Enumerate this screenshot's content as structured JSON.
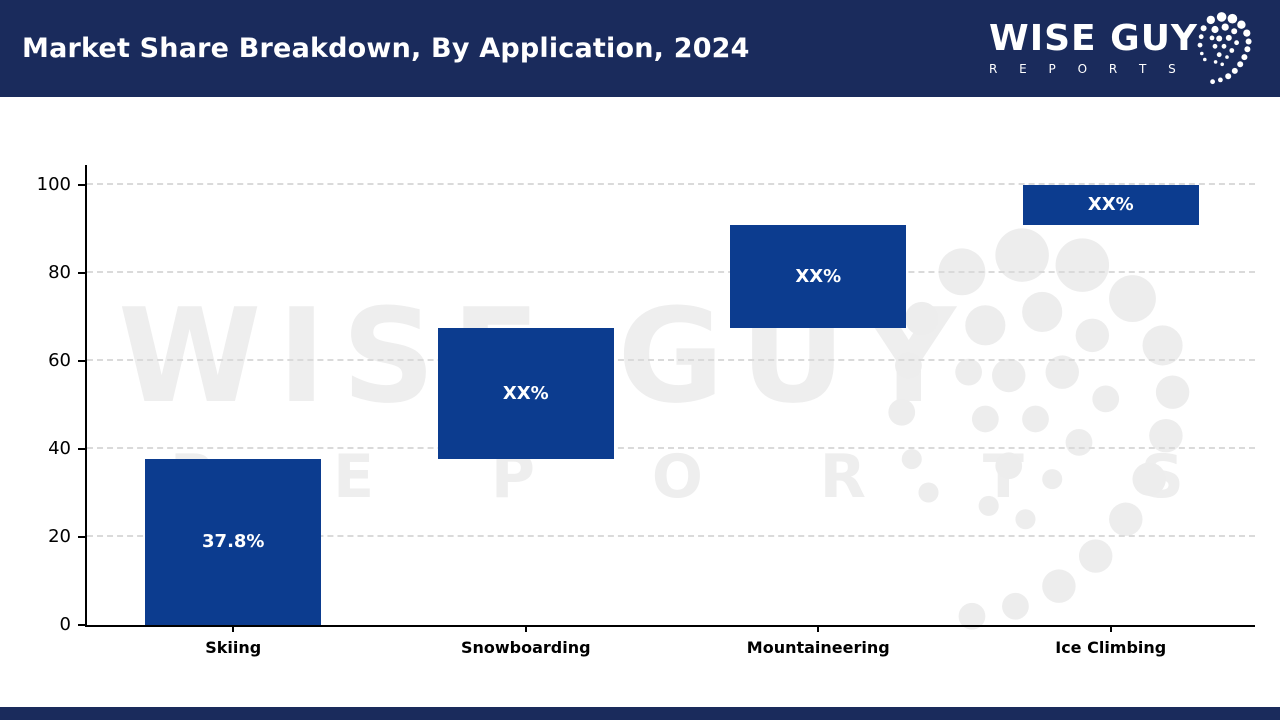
{
  "header": {
    "title": "Market Share Breakdown, By Application, 2024",
    "brand_line1": "WISE GUY",
    "brand_line2": "R E P O R T S"
  },
  "watermark": {
    "line1": "WISE GUY",
    "line2": "R E P O R T S"
  },
  "chart_data": {
    "type": "bar",
    "subtype": "floating-waterfall-segments",
    "title": "Market Share Breakdown, By Application, 2024",
    "categories": [
      "Skiing",
      "Snowboarding",
      "Mountaineering",
      "Ice Climbing"
    ],
    "series": [
      {
        "name": "Market Share (%)",
        "ranges": [
          [
            0,
            37.8
          ],
          [
            37.8,
            67.5
          ],
          [
            67.5,
            91
          ],
          [
            91,
            100
          ]
        ]
      }
    ],
    "bar_labels": [
      "37.8%",
      "XX%",
      "XX%",
      "XX%"
    ],
    "xlabel": "",
    "ylabel": "",
    "ylim": [
      0,
      100
    ],
    "yticks": [
      0,
      20,
      40,
      60,
      80,
      100
    ],
    "grid": "horizontal-dashed",
    "legend": "none",
    "bar_color": "#0c3c8f"
  },
  "colors": {
    "header_bg": "#1a2b5c",
    "footer_bg": "#1a2b5c",
    "bar": "#0c3c8f",
    "gridline": "#dadada",
    "axis": "#000000",
    "watermark": "#eeeeee",
    "title_text": "#ffffff"
  }
}
